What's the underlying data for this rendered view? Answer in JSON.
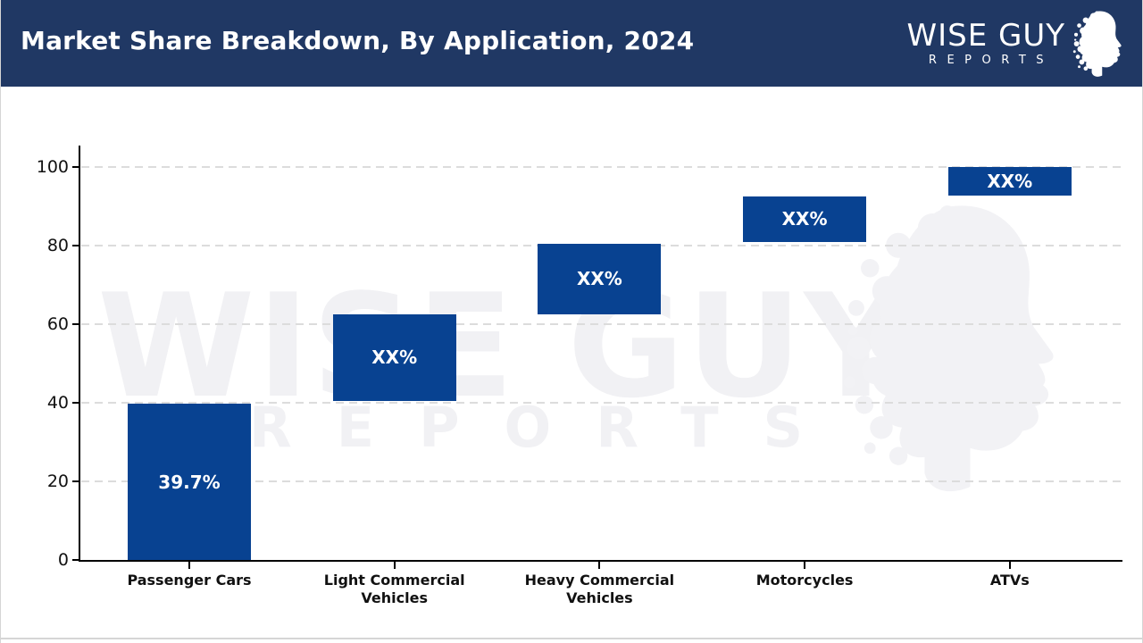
{
  "header": {
    "title": "Market Share Breakdown, By Application, 2024",
    "logo": {
      "wordmark": "WISE GUY",
      "subtext": "REPORTS"
    }
  },
  "watermark": {
    "wordmark": "WISE GUY",
    "subtext": "REPORTS"
  },
  "chart_data": {
    "type": "bar",
    "subtype": "waterfall",
    "title": "Market Share Breakdown, By Application, 2024",
    "categories": [
      "Passenger Cars",
      "Light Commercial Vehicles",
      "Heavy Commercial Vehicles",
      "Motorcycles",
      "ATVs"
    ],
    "segments": [
      {
        "category": "Passenger Cars",
        "start": 0,
        "end": 39.7,
        "label": "39.7%"
      },
      {
        "category": "Light Commercial Vehicles",
        "start": 40.4,
        "end": 62.6,
        "label": "XX%"
      },
      {
        "category": "Heavy Commercial Vehicles",
        "start": 62.6,
        "end": 80.5,
        "label": "XX%"
      },
      {
        "category": "Motorcycles",
        "start": 81.0,
        "end": 92.5,
        "label": "XX%"
      },
      {
        "category": "ATVs",
        "start": 92.7,
        "end": 100,
        "label": "XX%"
      }
    ],
    "ylim": [
      0,
      100
    ],
    "yticks": [
      0,
      20,
      40,
      60,
      80,
      100
    ],
    "grid": "horizontal dashed",
    "legend": "none",
    "bar_color": "#084291",
    "bar_label_color": "#ffffff"
  },
  "colors": {
    "header_bg": "#203864",
    "bar": "#084291",
    "axis": "#000000",
    "grid": "#dcdcdc",
    "watermark": "#f1f1f4",
    "text": "#111111"
  }
}
